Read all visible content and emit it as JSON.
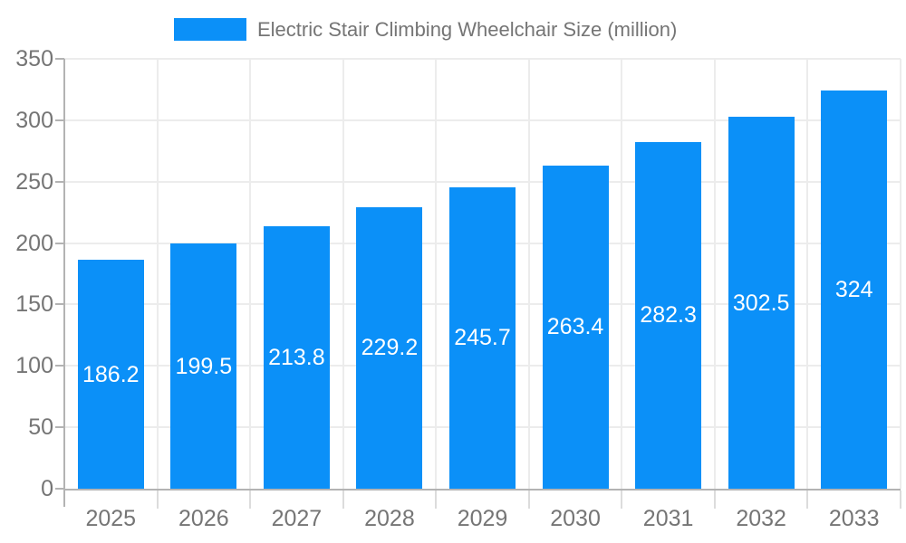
{
  "chart_data": {
    "type": "bar",
    "title": "Electric Stair Climbing Wheelchair Size (million)",
    "series": [
      {
        "name": "Electric Stair Climbing Wheelchair Size (million)",
        "values": [
          186.2,
          199.5,
          213.8,
          229.2,
          245.7,
          263.4,
          282.3,
          302.5,
          324
        ]
      }
    ],
    "categories": [
      "2025",
      "2026",
      "2027",
      "2028",
      "2029",
      "2030",
      "2031",
      "2032",
      "2033"
    ],
    "value_labels": [
      "186.2",
      "199.5",
      "213.8",
      "229.2",
      "245.7",
      "263.4",
      "282.3",
      "302.5",
      "324"
    ],
    "xlabel": "",
    "ylabel": "",
    "ylim": [
      0,
      350
    ],
    "yticks": [
      0,
      50,
      100,
      150,
      200,
      250,
      300,
      350
    ],
    "grid": true,
    "legend_position": "top",
    "bar_color": "#0b90f8",
    "value_label_color": "#ffffff",
    "text_color": "#757575",
    "axis_color": "#b3b3b3",
    "grid_color": "#ececec"
  }
}
